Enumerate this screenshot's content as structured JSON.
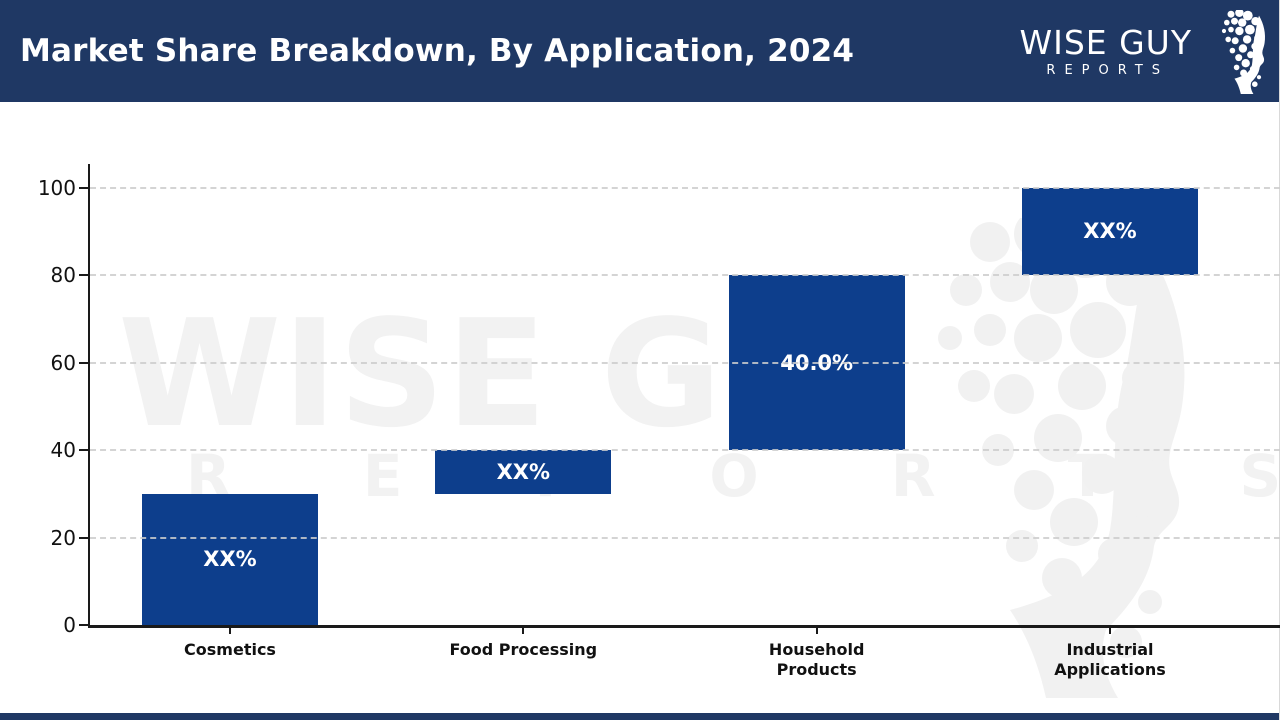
{
  "header": {
    "title": "Market Share Breakdown, By Application, 2024",
    "brand": {
      "line1": "WISE GUY",
      "line2": "REPORTS"
    },
    "bg_color": "#1f3864"
  },
  "watermark": {
    "line1": "WISE GU",
    "line2": "R E P O R T S"
  },
  "chart_data": {
    "type": "bar",
    "subtype": "floating-range-bars",
    "title": "Market Share Breakdown, By Application, 2024",
    "categories": [
      "Cosmetics",
      "Food Processing",
      "Household Products",
      "Industrial Applications"
    ],
    "series": [
      {
        "name": "Market Share (%)",
        "ranges": [
          [
            0,
            30
          ],
          [
            30,
            40
          ],
          [
            40,
            80
          ],
          [
            80,
            100
          ]
        ]
      }
    ],
    "bar_labels": [
      "XX%",
      "XX%",
      "40.0%",
      "XX%"
    ],
    "yticks": [
      0,
      20,
      40,
      60,
      80,
      100
    ],
    "ylim": [
      0,
      105
    ],
    "xlabel": "",
    "ylabel": "",
    "bar_color": "#0d3e8c",
    "label_color": "#ffffff",
    "grid": "horizontal-dashed",
    "legend": "none"
  },
  "footer": {
    "bg_color": "#1f3864"
  }
}
